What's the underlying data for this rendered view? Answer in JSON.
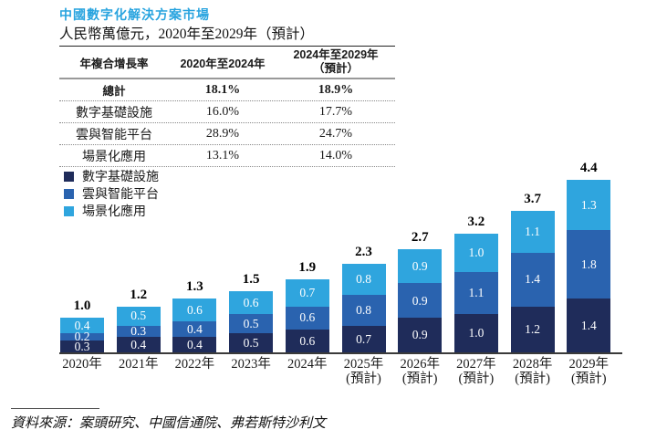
{
  "title": "中國數字化解決方案市場",
  "subtitle": "人民幣萬億元，2020年至2029年（預計）",
  "source": "資料來源：案頭研究、中國信通院、弗若斯特沙利文",
  "colors": {
    "title_blue": "#29A4DF",
    "dark_navy": "#1F2C5A",
    "medium_blue": "#2A63AF",
    "light_blue": "#2FA5DE",
    "axis": "#3a3a3a"
  },
  "table": {
    "header": {
      "col1": "年複合增長率",
      "col2": "2020年至2024年",
      "col3_line1": "2024年至2029年",
      "col3_line2": "（預計）"
    },
    "rows": [
      {
        "label": "總計",
        "v2020_2024": "18.1%",
        "v2024_2029": "18.9%"
      },
      {
        "label": "數字基礎設施",
        "v2020_2024": "16.0%",
        "v2024_2029": "17.7%"
      },
      {
        "label": "雲與智能平台",
        "v2020_2024": "28.9%",
        "v2024_2029": "24.7%"
      },
      {
        "label": "場景化應用",
        "v2020_2024": "13.1%",
        "v2024_2029": "14.0%"
      }
    ]
  },
  "legend": [
    {
      "label": "數字基礎設施",
      "color": "#1F2C5A"
    },
    {
      "label": "雲與智能平台",
      "color": "#2A63AF"
    },
    {
      "label": "場景化應用",
      "color": "#2FA5DE"
    }
  ],
  "chart_data": {
    "type": "bar",
    "stacked": true,
    "unit_label": "人民幣萬億元",
    "grid": false,
    "legend_position": "top-left",
    "ylim": [
      0,
      4.5
    ],
    "categories": [
      {
        "line1": "2020年",
        "line2": ""
      },
      {
        "line1": "2021年",
        "line2": ""
      },
      {
        "line1": "2022年",
        "line2": ""
      },
      {
        "line1": "2023年",
        "line2": ""
      },
      {
        "line1": "2024年",
        "line2": ""
      },
      {
        "line1": "2025年",
        "line2": "(預計)"
      },
      {
        "line1": "2026年",
        "line2": "(預計)"
      },
      {
        "line1": "2027年",
        "line2": "(預計)"
      },
      {
        "line1": "2028年",
        "line2": "(預計)"
      },
      {
        "line1": "2029年",
        "line2": "(預計)"
      }
    ],
    "series": [
      {
        "name": "數字基礎設施",
        "color": "#1F2C5A",
        "values": [
          0.3,
          0.4,
          0.4,
          0.5,
          0.6,
          0.7,
          0.9,
          1.0,
          1.2,
          1.4
        ]
      },
      {
        "name": "雲與智能平台",
        "color": "#2A63AF",
        "values": [
          0.2,
          0.3,
          0.4,
          0.5,
          0.6,
          0.8,
          0.9,
          1.1,
          1.4,
          1.8
        ]
      },
      {
        "name": "場景化應用",
        "color": "#2FA5DE",
        "values": [
          0.4,
          0.5,
          0.6,
          0.6,
          0.7,
          0.8,
          0.9,
          1.0,
          1.1,
          1.3
        ]
      }
    ],
    "totals": [
      "1.0",
      "1.2",
      "1.3",
      "1.5",
      "1.9",
      "2.3",
      "2.7",
      "3.2",
      "3.7",
      "4.4"
    ]
  }
}
